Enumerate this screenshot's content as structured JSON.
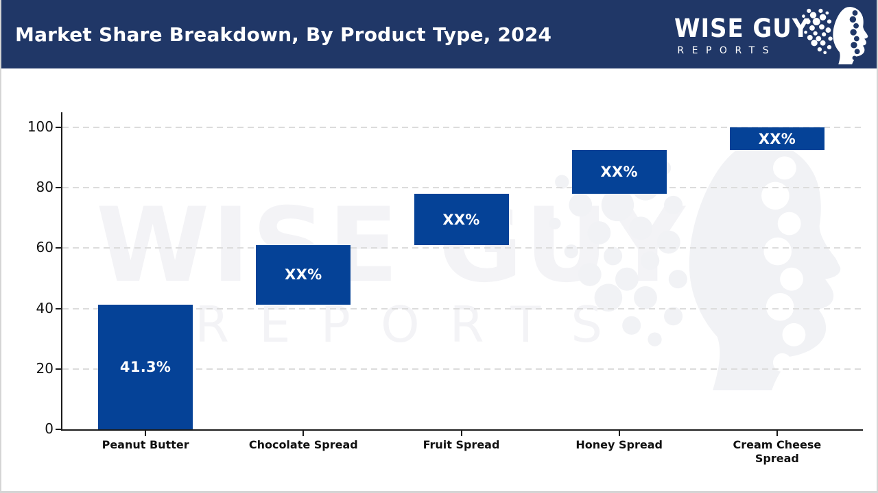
{
  "header": {
    "title": "Market Share Breakdown, By Product Type, 2024",
    "logo": {
      "line1": "WISE GUY",
      "line2": "REPORTS"
    }
  },
  "watermark": {
    "line1": "WISE GUY",
    "line2": "REPORTS"
  },
  "colors": {
    "header_navy": "#203767",
    "bar_blue": "#054297",
    "gridline_gray": "#dcdcdc",
    "watermark_gray": "#f3f3f6"
  },
  "chart_data": {
    "type": "bar",
    "subtype": "waterfall",
    "title": "Market Share Breakdown, By Product Type, 2024",
    "xlabel": "",
    "ylabel": "",
    "ylim": [
      0,
      105
    ],
    "yticks": [
      0,
      20,
      40,
      60,
      80,
      100
    ],
    "grid": "horizontal-dashed",
    "legend": "none",
    "categories": [
      "Peanut Butter",
      "Chocolate Spread",
      "Fruit Spread",
      "Honey Spread",
      "Cream Cheese Spread"
    ],
    "bars": [
      {
        "category": "Peanut Butter",
        "display_label": "41.3%",
        "value": 41.3,
        "base": 0,
        "top": 41.3
      },
      {
        "category": "Chocolate Spread",
        "display_label": "XX%",
        "value": 19.7,
        "base": 41.3,
        "top": 61.0
      },
      {
        "category": "Fruit Spread",
        "display_label": "XX%",
        "value": 17.0,
        "base": 61.0,
        "top": 78.0
      },
      {
        "category": "Honey Spread",
        "display_label": "XX%",
        "value": 14.5,
        "base": 78.0,
        "top": 92.5
      },
      {
        "category": "Cream Cheese Spread",
        "display_label": "XX%",
        "value": 7.5,
        "base": 92.5,
        "top": 100.0
      }
    ],
    "bar_color": "#054297"
  }
}
